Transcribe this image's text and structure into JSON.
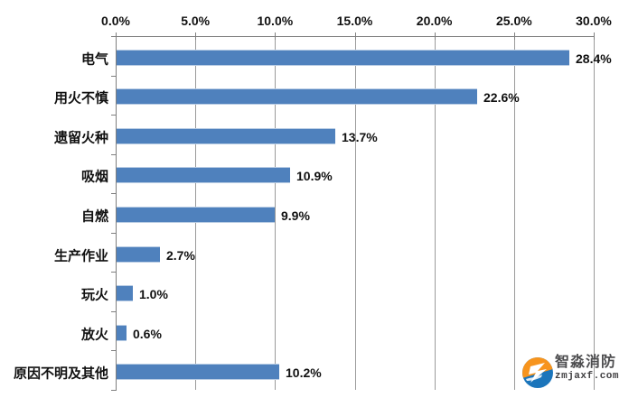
{
  "chart_data": {
    "type": "bar",
    "orientation": "horizontal",
    "title": "",
    "xlabel": "",
    "ylabel": "",
    "categories": [
      "电气",
      "用火不慎",
      "遗留火种",
      "吸烟",
      "自燃",
      "生产作业",
      "玩火",
      "放火",
      "原因不明及其他"
    ],
    "values": [
      28.4,
      22.6,
      13.7,
      10.9,
      9.9,
      2.7,
      1.0,
      0.6,
      10.2
    ],
    "value_labels": [
      "28.4%",
      "22.6%",
      "13.7%",
      "10.9%",
      "9.9%",
      "2.7%",
      "1.0%",
      "0.6%",
      "10.2%"
    ],
    "x_ticks": [
      "0.0%",
      "5.0%",
      "10.0%",
      "15.0%",
      "20.0%",
      "25.0%",
      "30.0%"
    ],
    "xlim": [
      0,
      30
    ],
    "grid": true,
    "axis_position": "top",
    "legend": "none",
    "colors": {
      "bar": "#4F81BD",
      "grid": "#9b9b9b",
      "axis": "#7f7f7f",
      "text": "#111111"
    }
  },
  "watermark": {
    "name": "智淼消防",
    "domain": "zmjaxf.com",
    "icon": "zm-fire-logo-icon",
    "icon_colors": {
      "top": "#F7941D",
      "bottom": "#1B75BB",
      "mark": "#ffffff"
    }
  }
}
